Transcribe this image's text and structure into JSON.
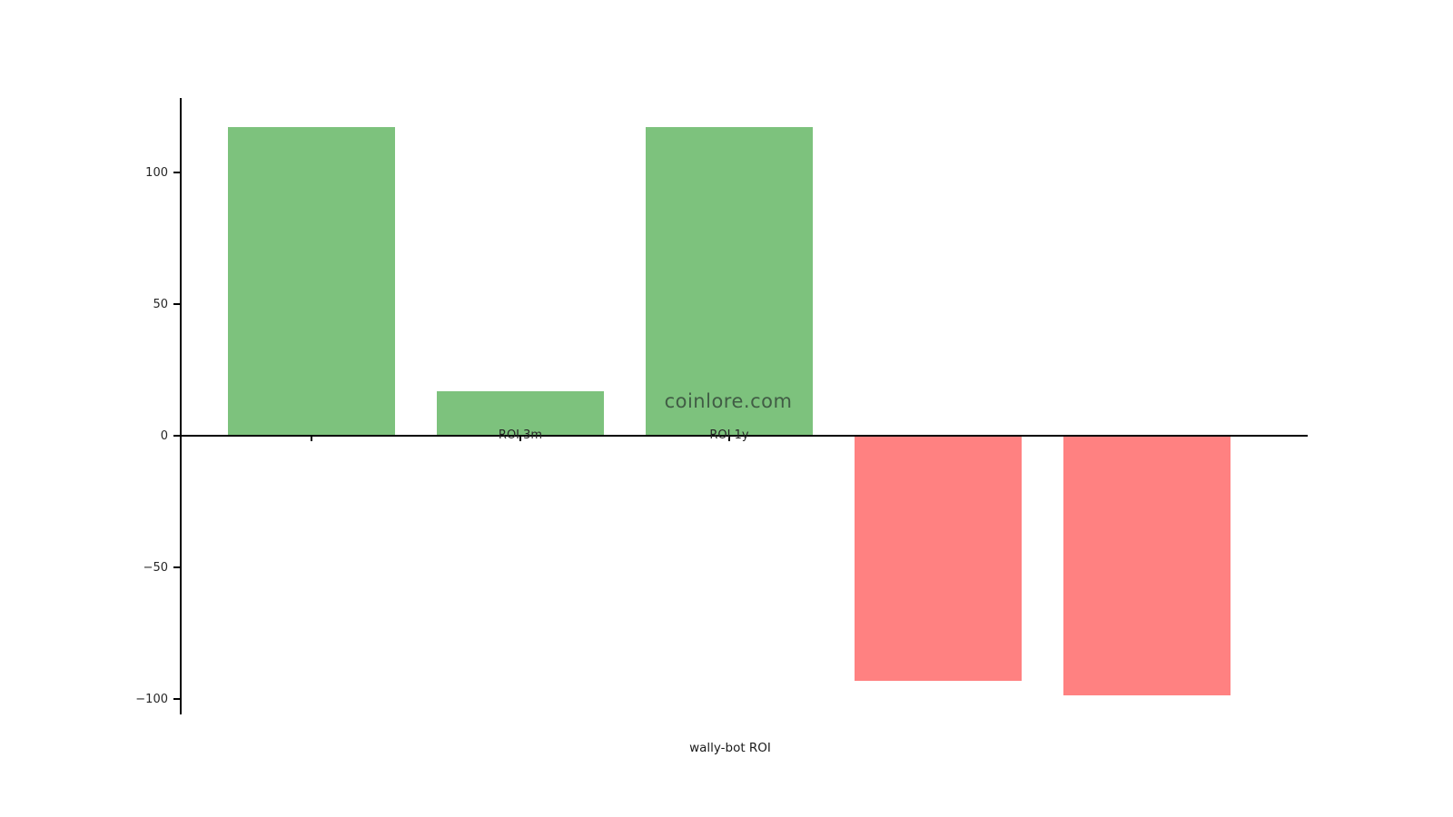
{
  "page": {
    "background_color": "#ffffff"
  },
  "watermark": {
    "text": "coinlore.com",
    "color": "#415c45"
  },
  "chart_data": {
    "type": "bar",
    "title": "",
    "xlabel": "wally-bot ROI",
    "ylabel": "",
    "categories": [
      "",
      "ROI 3m",
      "ROI 1y",
      "",
      ""
    ],
    "values": [
      117.2,
      16.8,
      117.2,
      -93.1,
      -98.6
    ],
    "series": [
      {
        "name": "wally-bot ROI",
        "values": [
          117.2,
          16.8,
          117.2,
          -93.1,
          -98.6
        ]
      }
    ],
    "bar_colors": [
      "#7dc27d",
      "#7dc27d",
      "#7dc27d",
      "#ff8181",
      "#ff8181"
    ],
    "positive_color": "#7dc27d",
    "negative_color": "#ff8181",
    "yticks": [
      100,
      50,
      0,
      -50,
      -100
    ],
    "ytick_labels": [
      "100",
      "50",
      "0",
      "−50",
      "−100"
    ],
    "ylim": [
      -106,
      128
    ],
    "x_ticks_with_marks": [
      0,
      1,
      2
    ],
    "x_ticks_with_labels": [
      1,
      2
    ],
    "grid": false,
    "legend": false,
    "axis_color": "#000000",
    "tick_label_color": "#262626"
  }
}
